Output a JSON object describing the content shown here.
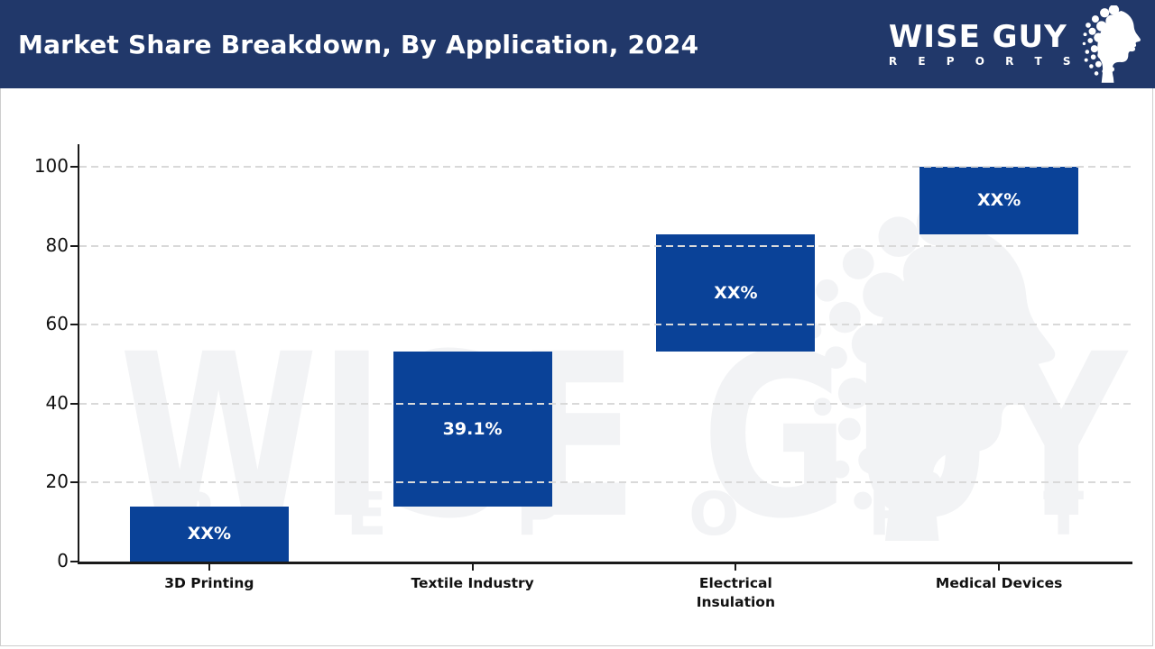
{
  "header": {
    "title": "Market Share Breakdown, By Application, 2024",
    "bg_color": "#21386a",
    "logo": {
      "name": "Wise Guy Reports",
      "line1": "WISE GUY",
      "line2": "REPORTS"
    }
  },
  "watermark": {
    "line1": "WISE GUY",
    "line2": "R E P O R T S"
  },
  "chart_data": {
    "type": "bar",
    "subtype": "waterfall",
    "title": "Market Share Breakdown, By Application, 2024",
    "categories": [
      "3D Printing",
      "Textile Industry",
      "Electrical\nInsulation",
      "Medical Devices"
    ],
    "series": [
      {
        "name": "Market share (%)",
        "starts": [
          0,
          14.0,
          53.1,
          82.9
        ],
        "values": [
          14.0,
          39.1,
          29.8,
          17.1
        ]
      }
    ],
    "bar_labels": [
      "XX%",
      "39.1%",
      "XX%",
      "XX%"
    ],
    "ylim": [
      0,
      100
    ],
    "yticks": [
      0,
      20,
      40,
      60,
      80,
      100
    ],
    "xlabel": "",
    "ylabel": "",
    "grid": "horizontal-dashed",
    "legend": "none",
    "bar_color": "#0a4298",
    "grid_color": "#d9d9d9",
    "axis_color": "#1a1a1a",
    "bar_label_color": "#ffffff"
  }
}
